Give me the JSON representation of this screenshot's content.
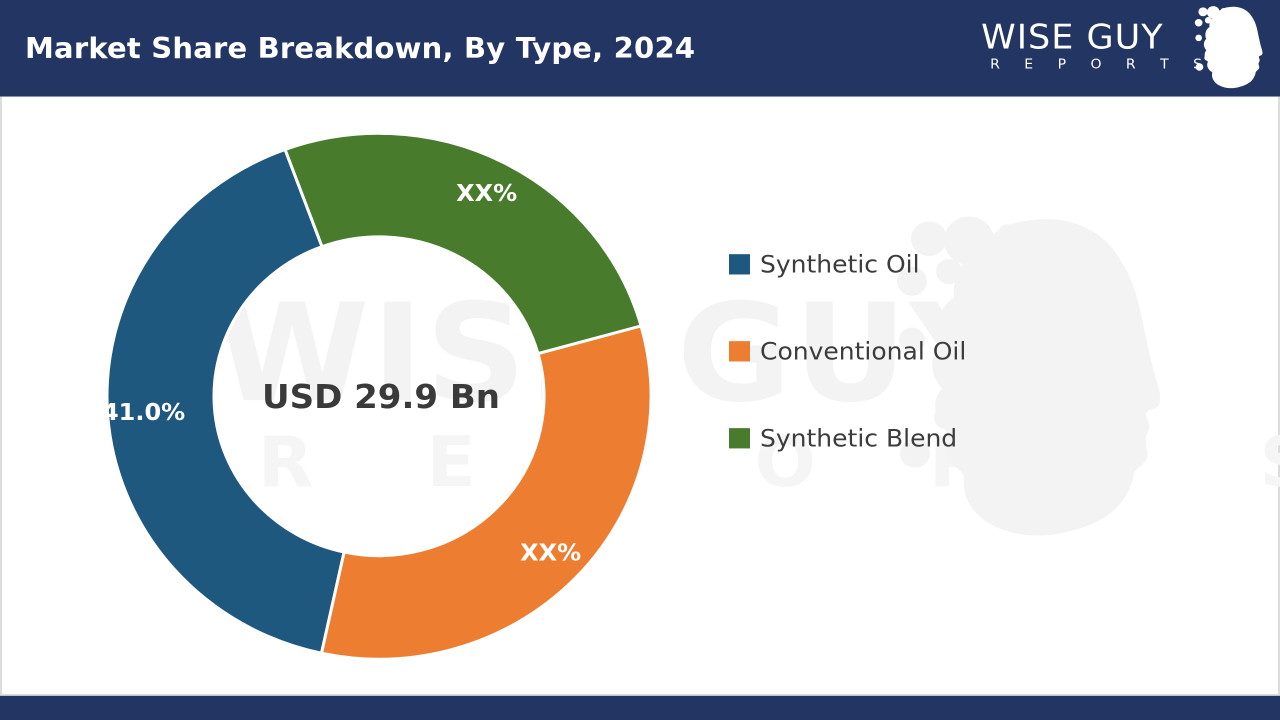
{
  "header": {
    "title": "Market Share Breakdown, By Type, 2024",
    "logo_main": "WISE GUY",
    "logo_sub": "R E P O R T S"
  },
  "watermark": {
    "text_main": "WISE GUY",
    "text_sub": "R E P O R T S",
    "face_icon": "head-profile-dots"
  },
  "colors": {
    "header_bar": "#223563",
    "footer_bar": "#223563",
    "watermark_gray": "#F3F3F3",
    "content_border": "#DCDCDC",
    "text_dark": "#3C3C3C"
  },
  "chart_data": {
    "type": "donut",
    "title": "Market Share Breakdown, By Type, 2024",
    "center_label": "USD 29.9 Bn",
    "start_angle_deg": 110.2,
    "direction": "counterclockwise",
    "legend_position": "right",
    "slices": [
      {
        "label": "Synthetic Oil",
        "displayed_value": "41.0%",
        "value_pct": 41.0,
        "color": "#1F587E"
      },
      {
        "label": "Conventional Oil",
        "displayed_value": "XX%",
        "value_pct": 32.7,
        "color": "#ED7D31"
      },
      {
        "label": "Synthetic Blend",
        "displayed_value": "XX%",
        "value_pct": 26.3,
        "color": "#487C2C"
      }
    ]
  }
}
